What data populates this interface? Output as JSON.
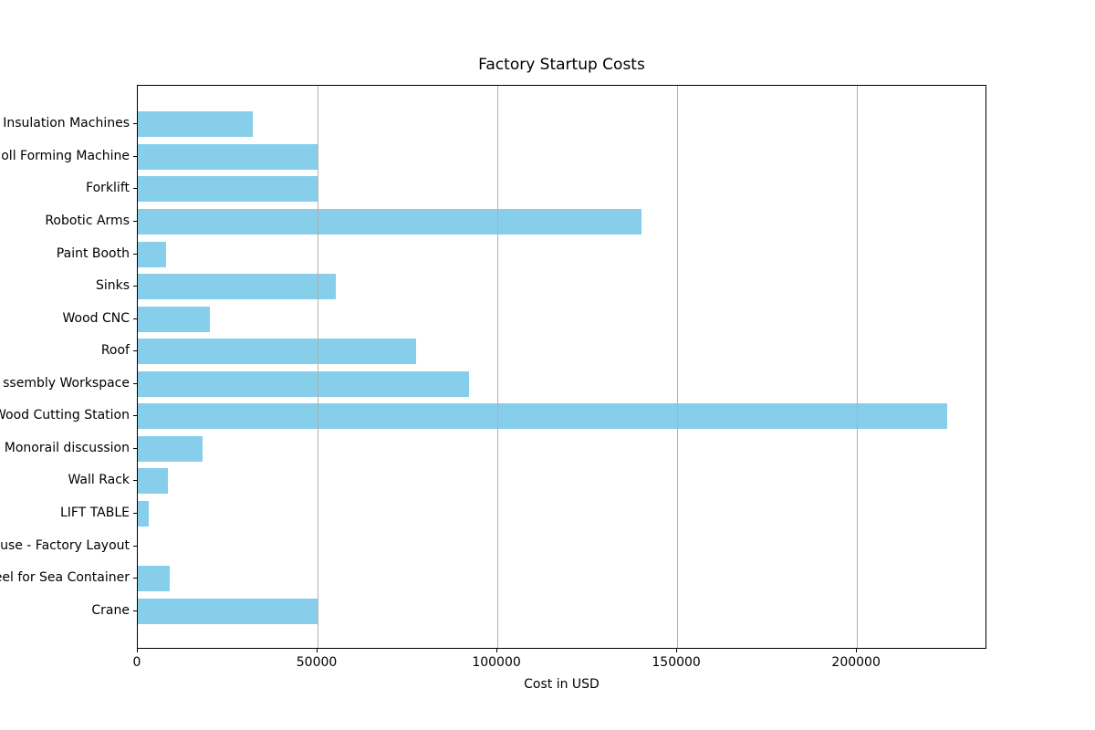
{
  "figure": {
    "background": "#ffffff",
    "text_color": "#000000",
    "spine_color": "#000000"
  },
  "chart_data": {
    "type": "bar",
    "orientation": "horizontal",
    "title": "Factory Startup Costs",
    "xlabel": "Cost in USD",
    "ylabel": "",
    "categories": [
      "Insulation Machines",
      "oll Forming Machine",
      "Forklift",
      "Robotic Arms",
      "Paint Booth",
      "Sinks",
      "Wood CNC",
      "Roof",
      "ssembly Workspace",
      "Wood Cutting Station",
      "Monorail discussion",
      "Wall Rack",
      "LIFT TABLE",
      "use - Factory Layout",
      "eel for Sea Container",
      "Crane"
    ],
    "values": [
      32000,
      50000,
      50000,
      140000,
      7800,
      55000,
      20000,
      77500,
      92000,
      225000,
      18000,
      8500,
      3000,
      0,
      8800,
      50000
    ],
    "bar_color": "#87ceeb",
    "xlim": [
      0,
      236250
    ],
    "xticks": [
      0,
      50000,
      100000,
      150000,
      200000
    ],
    "xtick_labels": [
      "0",
      "50000",
      "100000",
      "150000",
      "200000"
    ],
    "grid": "vertical",
    "grid_color": "#b0b0b0",
    "legend": "none"
  }
}
